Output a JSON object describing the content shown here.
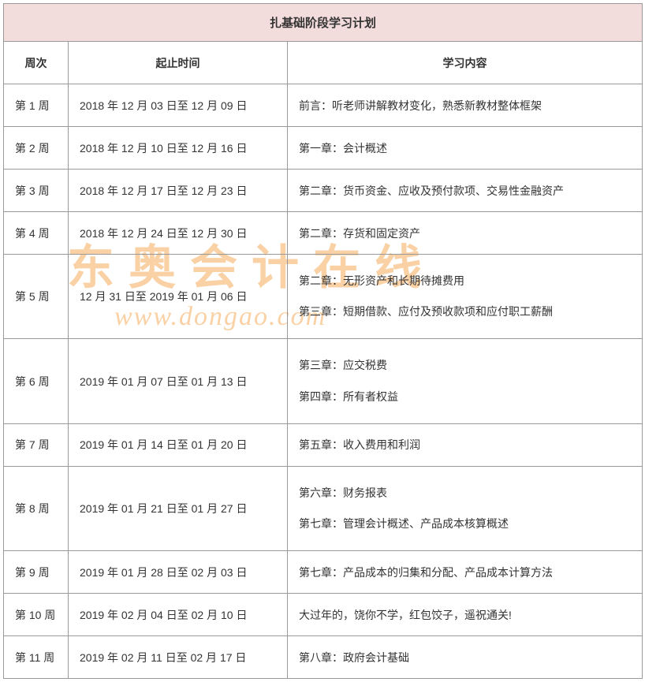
{
  "title": "扎基础阶段学习计划",
  "headers": {
    "week": "周次",
    "time": "起止时间",
    "content": "学习内容"
  },
  "watermark": {
    "text": "东奥会计在线",
    "url": "www.dongao.com",
    "logo_color": "#f5a34a"
  },
  "colors": {
    "title_bg": "#f3dcdc",
    "border": "#999999",
    "text": "#333333",
    "background": "#ffffff"
  },
  "rows": [
    {
      "week": "第 1 周",
      "time": "2018 年 12 月 03 日至 12 月 09 日",
      "content_lines": [
        "前言：听老师讲解教材变化，熟悉新教材整体框架"
      ]
    },
    {
      "week": "第 2 周",
      "time": "2018 年 12 月 10 日至 12 月 16 日",
      "content_lines": [
        "第一章：会计概述"
      ]
    },
    {
      "week": "第 3 周",
      "time": "2018 年 12 月 17 日至 12 月 23 日",
      "content_lines": [
        "第二章：货币资金、应收及预付款项、交易性金融资产"
      ]
    },
    {
      "week": "第 4 周",
      "time": "2018 年 12 月 24 日至 12 月 30 日",
      "content_lines": [
        "第二章：存货和固定资产"
      ]
    },
    {
      "week": "第 5 周",
      "time": "12 月 31 日至 2019 年 01 月 06 日",
      "content_lines": [
        "第二章：无形资产和长期待摊费用",
        "第三章：短期借款、应付及预收款项和应付职工薪酬"
      ]
    },
    {
      "week": "第 6 周",
      "time": "2019 年 01 月 07 日至 01 月 13 日",
      "content_lines": [
        "第三章：应交税费",
        "第四章：所有者权益"
      ]
    },
    {
      "week": "第 7 周",
      "time": "2019 年 01 月 14 日至 01 月 20 日",
      "content_lines": [
        "第五章：收入费用和利润"
      ]
    },
    {
      "week": "第 8 周",
      "time": "2019 年 01 月 21 日至 01 月 27 日",
      "content_lines": [
        "第六章：财务报表",
        "第七章：管理会计概述、产品成本核算概述"
      ]
    },
    {
      "week": "第 9 周",
      "time": "2019 年 01 月 28 日至 02 月 03 日",
      "content_lines": [
        "第七章：产品成本的归集和分配、产品成本计算方法"
      ]
    },
    {
      "week": "第 10 周",
      "time": "2019 年 02 月 04 日至 02 月 10 日",
      "content_lines": [
        "大过年的，饶你不学，红包饺子，遥祝通关!"
      ]
    },
    {
      "week": "第 11 周",
      "time": "2019 年 02 月 11 日至 02 月 17 日",
      "content_lines": [
        "第八章：政府会计基础"
      ]
    }
  ]
}
